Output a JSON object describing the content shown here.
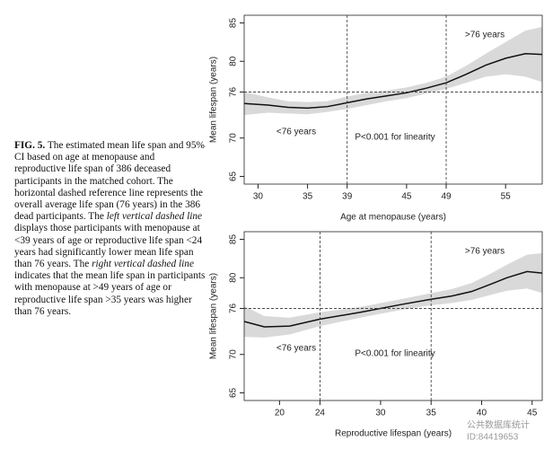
{
  "caption": {
    "label": "FIG. 5.",
    "segments": [
      {
        "text": " The estimated mean life span and 95% CI based on age at menopause and reproductive life span of 386 deceased participants in the matched cohort. The horizontal dashed reference line represents the overall average life span (76 years) in the 386 dead participants. The ",
        "italic": false
      },
      {
        "text": "left vertical dashed line",
        "italic": true
      },
      {
        "text": " displays those participants with menopause at <39 years of age or reproductive life span <24 years had significantly lower mean life span than 76 years. The ",
        "italic": false
      },
      {
        "text": "right vertical dashed line",
        "italic": true
      },
      {
        "text": " indicates that the mean life span in participants with menopause at >49 years of age or reproductive life span >35 years was higher than 76 years.",
        "italic": false
      }
    ]
  },
  "watermark": [
    "公共数据库统计",
    "ID:84419653"
  ],
  "chart_data": [
    {
      "type": "line",
      "xlabel": "Age at menopause (years)",
      "ylabel": "Mean lifespan (years)",
      "x": [
        28.6,
        31,
        33,
        35,
        37,
        39,
        41,
        43,
        45,
        47,
        49,
        51,
        53,
        55,
        57,
        58.7
      ],
      "values": [
        74.5,
        74.3,
        74.0,
        73.9,
        74.1,
        74.6,
        75.1,
        75.5,
        75.9,
        76.5,
        77.2,
        78.3,
        79.5,
        80.4,
        81.0,
        80.9
      ],
      "ci_lower": [
        73.0,
        73.3,
        73.2,
        73.1,
        73.4,
        73.8,
        74.3,
        74.8,
        75.2,
        75.8,
        76.4,
        77.2,
        78.0,
        78.3,
        78.0,
        77.3
      ],
      "ci_upper": [
        76.0,
        75.3,
        74.8,
        74.7,
        74.8,
        75.4,
        75.9,
        76.2,
        76.6,
        77.2,
        78.0,
        79.4,
        81.0,
        82.5,
        84.0,
        84.5
      ],
      "color": "#111111",
      "band_color": "#d9d9d9",
      "xlim": [
        28.6,
        58.7
      ],
      "ylim": [
        64,
        86
      ],
      "xticks": [
        30,
        35,
        39,
        45,
        49,
        55
      ],
      "yticks": [
        65,
        70,
        76,
        80,
        85
      ],
      "vlines": [
        39,
        49
      ],
      "hline": 76,
      "annotations": [
        ">76 years",
        "<76 years",
        "P<0.001 for linearity"
      ]
    },
    {
      "type": "line",
      "xlabel": "Reproductive lifespan (years)",
      "ylabel": "Mean lifespan (years)",
      "x": [
        16.5,
        18.5,
        21,
        24,
        28,
        32,
        35,
        37,
        39,
        41,
        42.5,
        44.5,
        46
      ],
      "values": [
        74.3,
        73.6,
        73.7,
        74.6,
        75.5,
        76.5,
        77.2,
        77.6,
        78.2,
        79.2,
        80.0,
        80.8,
        80.6
      ],
      "ci_lower": [
        72.3,
        72.2,
        72.6,
        73.7,
        74.8,
        75.8,
        76.4,
        76.7,
        77.1,
        77.8,
        78.3,
        78.6,
        78.0
      ],
      "ci_upper": [
        76.3,
        75.0,
        74.8,
        75.5,
        76.2,
        77.2,
        78.0,
        78.5,
        79.3,
        80.6,
        81.7,
        83.0,
        83.2
      ],
      "color": "#111111",
      "band_color": "#d9d9d9",
      "xlim": [
        16.5,
        46
      ],
      "ylim": [
        64,
        86
      ],
      "xticks": [
        20,
        24,
        30,
        35,
        40,
        45
      ],
      "yticks": [
        65,
        70,
        76,
        80,
        85
      ],
      "vlines": [
        24,
        35
      ],
      "hline": 76,
      "annotations": [
        ">76 years",
        "<76 years",
        "P<0.001 for linearity"
      ]
    }
  ]
}
